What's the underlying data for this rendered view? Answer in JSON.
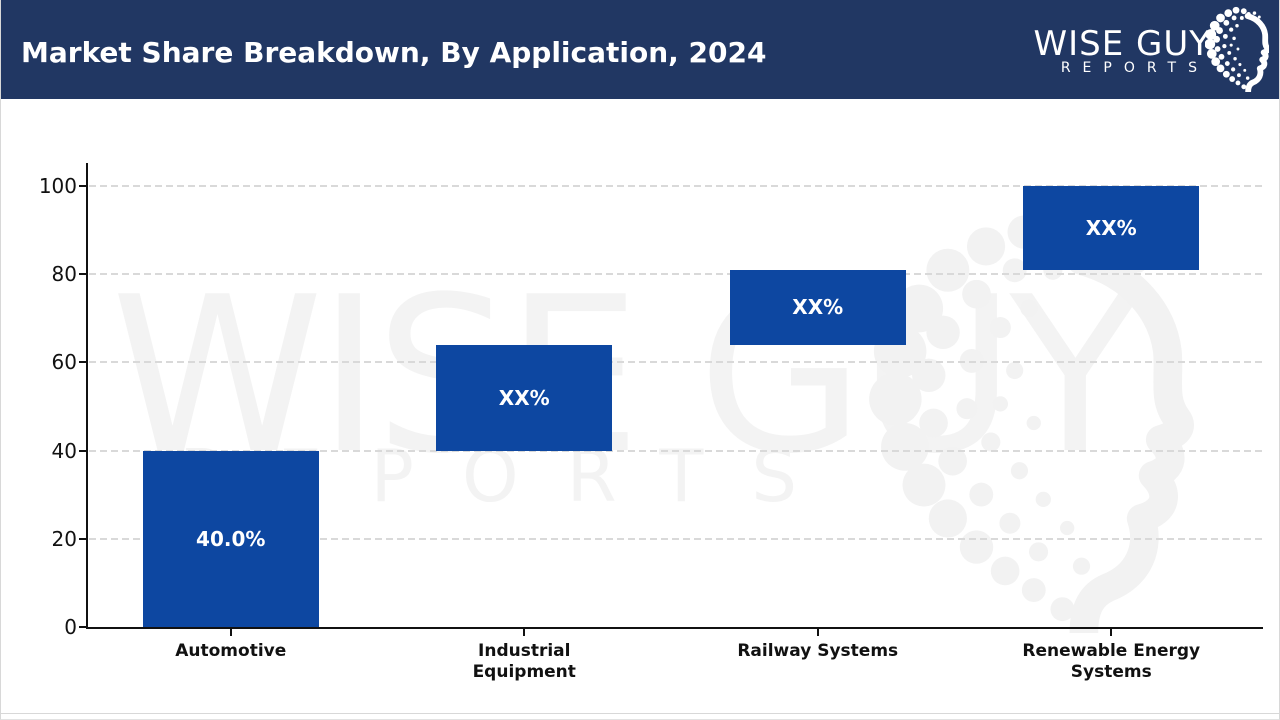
{
  "header": {
    "title": "Market Share Breakdown, By Application, 2024",
    "logo": {
      "line1": "WISE GUY",
      "line2": "REPORTS"
    }
  },
  "watermark": {
    "line1": "WISE GUY",
    "line2": "REPORTS"
  },
  "colors": {
    "header_bg": "#213763",
    "bar_blue": "#0d47a1",
    "watermark_gray": "#f3f3f3",
    "grid_gray": "#d9d9d9",
    "axis_black": "#111111",
    "label_white": "#ffffff"
  },
  "chart_data": {
    "type": "bar",
    "subtype": "waterfall",
    "title": "Market Share Breakdown, By Application, 2024",
    "categories": [
      [
        "Automotive"
      ],
      [
        "Industrial",
        "Equipment"
      ],
      [
        "Railway Systems"
      ],
      [
        "Renewable Energy",
        "Systems"
      ]
    ],
    "series": [
      {
        "name": "Market share (%)",
        "starts": [
          0,
          40,
          64,
          81
        ],
        "ends": [
          40,
          64,
          81,
          100
        ]
      }
    ],
    "bar_labels": [
      "40.0%",
      "XX%",
      "XX%",
      "XX%"
    ],
    "xlabel": "",
    "ylabel": "",
    "ylim": [
      0,
      100
    ],
    "yticks": [
      0,
      20,
      40,
      60,
      80,
      100
    ],
    "grid": "horizontal-dashed",
    "legend": "none"
  }
}
